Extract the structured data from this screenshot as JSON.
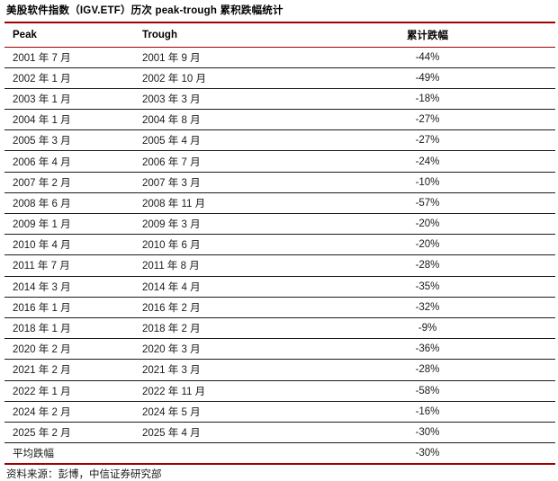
{
  "title": "美股软件指数（IGV.ETF）历次 peak-trough 累积跌幅统计",
  "table": {
    "columns": [
      "Peak",
      "Trough",
      "累计跌幅"
    ],
    "rows": [
      {
        "peak": "2001 年 7 月",
        "trough": "2001 年 9 月",
        "drawdown": "-44%"
      },
      {
        "peak": "2002 年 1 月",
        "trough": "2002 年 10 月",
        "drawdown": "-49%"
      },
      {
        "peak": "2003 年 1 月",
        "trough": "2003 年 3 月",
        "drawdown": "-18%"
      },
      {
        "peak": "2004 年 1 月",
        "trough": "2004 年 8 月",
        "drawdown": "-27%"
      },
      {
        "peak": "2005 年 3 月",
        "trough": "2005 年 4 月",
        "drawdown": "-27%"
      },
      {
        "peak": "2006 年 4 月",
        "trough": "2006 年 7 月",
        "drawdown": "-24%"
      },
      {
        "peak": "2007 年 2 月",
        "trough": "2007 年 3 月",
        "drawdown": "-10%"
      },
      {
        "peak": "2008 年 6 月",
        "trough": "2008 年 11 月",
        "drawdown": "-57%"
      },
      {
        "peak": "2009 年 1 月",
        "trough": "2009 年 3 月",
        "drawdown": "-20%"
      },
      {
        "peak": "2010 年 4 月",
        "trough": "2010 年 6 月",
        "drawdown": "-20%"
      },
      {
        "peak": "2011 年 7 月",
        "trough": "2011 年 8 月",
        "drawdown": "-28%"
      },
      {
        "peak": "2014 年 3 月",
        "trough": "2014 年 4 月",
        "drawdown": "-35%"
      },
      {
        "peak": "2016 年 1 月",
        "trough": "2016 年 2 月",
        "drawdown": "-32%"
      },
      {
        "peak": "2018 年 1 月",
        "trough": "2018 年 2 月",
        "drawdown": "-9%"
      },
      {
        "peak": "2020 年 2 月",
        "trough": "2020 年 3 月",
        "drawdown": "-36%"
      },
      {
        "peak": "2021 年 2 月",
        "trough": "2021 年 3 月",
        "drawdown": "-28%"
      },
      {
        "peak": "2022 年 1 月",
        "trough": "2022 年 11 月",
        "drawdown": "-58%"
      },
      {
        "peak": "2024 年 2 月",
        "trough": "2024 年 5 月",
        "drawdown": "-16%"
      },
      {
        "peak": "2025 年 2 月",
        "trough": "2025 年 4 月",
        "drawdown": "-30%"
      }
    ],
    "summary": {
      "label": "平均跌幅",
      "value": "-30%"
    }
  },
  "footer": {
    "source_label": "资料来源：彭博，中信证券研究部"
  },
  "colors": {
    "accent_red": "#a20000",
    "row_line": "#1b1b1b",
    "text": "#1a1a1a"
  }
}
